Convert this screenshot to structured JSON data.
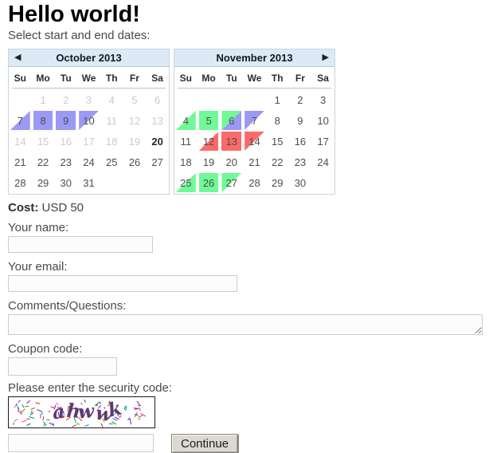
{
  "page": {
    "title": "Hello world!",
    "subtitle": "Select start and end dates:"
  },
  "legend_colors": {
    "purple": "#9a99f6",
    "green": "#6ffa97",
    "red": "#fc6a6a",
    "header_bg": "#dce9f6",
    "captcha_ink": "#5e3a70"
  },
  "calendars": [
    {
      "id": "october",
      "title": "October 2013",
      "nav_prev": "◀",
      "nav_next": "",
      "day_headers": [
        "Su",
        "Mo",
        "Tu",
        "We",
        "Th",
        "Fr",
        "Sa"
      ],
      "weeks": [
        [
          {
            "d": ""
          },
          {
            "d": "1",
            "muted": true
          },
          {
            "d": "2",
            "muted": true
          },
          {
            "d": "3",
            "muted": true
          },
          {
            "d": "4",
            "muted": true
          },
          {
            "d": "5",
            "muted": true
          },
          {
            "d": "6",
            "muted": true
          }
        ],
        [
          {
            "d": "7",
            "marks": [
              [
                "checkin",
                "purple"
              ]
            ]
          },
          {
            "d": "8",
            "marks": [
              [
                "full",
                "purple"
              ]
            ]
          },
          {
            "d": "9",
            "marks": [
              [
                "full",
                "purple"
              ]
            ]
          },
          {
            "d": "10",
            "marks": [
              [
                "checkout",
                "purple"
              ]
            ]
          },
          {
            "d": "11",
            "muted": true
          },
          {
            "d": "12",
            "muted": true
          },
          {
            "d": "13",
            "muted": true
          }
        ],
        [
          {
            "d": "14",
            "muted": true
          },
          {
            "d": "15",
            "muted": true
          },
          {
            "d": "16",
            "muted": true
          },
          {
            "d": "17",
            "muted": true
          },
          {
            "d": "18",
            "muted": true
          },
          {
            "d": "19",
            "muted": true
          },
          {
            "d": "20",
            "bold": true
          }
        ],
        [
          {
            "d": "21"
          },
          {
            "d": "22"
          },
          {
            "d": "23"
          },
          {
            "d": "24"
          },
          {
            "d": "25"
          },
          {
            "d": "26"
          },
          {
            "d": "27"
          }
        ],
        [
          {
            "d": "28"
          },
          {
            "d": "29"
          },
          {
            "d": "30"
          },
          {
            "d": "31"
          },
          {
            "d": ""
          },
          {
            "d": ""
          },
          {
            "d": ""
          }
        ]
      ]
    },
    {
      "id": "november",
      "title": "November 2013",
      "nav_prev": "",
      "nav_next": "▶",
      "day_headers": [
        "Su",
        "Mo",
        "Tu",
        "We",
        "Th",
        "Fr",
        "Sa"
      ],
      "weeks": [
        [
          {
            "d": ""
          },
          {
            "d": ""
          },
          {
            "d": ""
          },
          {
            "d": ""
          },
          {
            "d": "1"
          },
          {
            "d": "2"
          },
          {
            "d": "3"
          }
        ],
        [
          {
            "d": "4",
            "marks": [
              [
                "checkin",
                "green"
              ]
            ]
          },
          {
            "d": "5",
            "marks": [
              [
                "full",
                "green"
              ]
            ]
          },
          {
            "d": "6",
            "marks": [
              [
                "checkout",
                "green"
              ],
              [
                "checkin",
                "purple"
              ]
            ]
          },
          {
            "d": "7",
            "marks": [
              [
                "checkout",
                "purple"
              ]
            ]
          },
          {
            "d": "8"
          },
          {
            "d": "9"
          },
          {
            "d": "10"
          }
        ],
        [
          {
            "d": "11"
          },
          {
            "d": "12",
            "marks": [
              [
                "checkin",
                "red"
              ]
            ]
          },
          {
            "d": "13",
            "marks": [
              [
                "full",
                "red"
              ]
            ]
          },
          {
            "d": "14",
            "marks": [
              [
                "checkout",
                "red"
              ]
            ]
          },
          {
            "d": "15"
          },
          {
            "d": "16"
          },
          {
            "d": "17"
          }
        ],
        [
          {
            "d": "18"
          },
          {
            "d": "19"
          },
          {
            "d": "20"
          },
          {
            "d": "21"
          },
          {
            "d": "22"
          },
          {
            "d": "23"
          },
          {
            "d": "24"
          }
        ],
        [
          {
            "d": "25",
            "marks": [
              [
                "checkin",
                "green"
              ]
            ]
          },
          {
            "d": "26",
            "marks": [
              [
                "full",
                "green"
              ]
            ]
          },
          {
            "d": "27",
            "marks": [
              [
                "checkout",
                "green"
              ]
            ]
          },
          {
            "d": "28"
          },
          {
            "d": "29"
          },
          {
            "d": "30"
          },
          {
            "d": ""
          }
        ]
      ]
    }
  ],
  "cost": {
    "label": "Cost:",
    "value": "USD 50"
  },
  "form": {
    "name": {
      "label": "Your name:",
      "value": ""
    },
    "email": {
      "label": "Your email:",
      "value": ""
    },
    "comments": {
      "label": "Comments/Questions:",
      "value": ""
    },
    "coupon": {
      "label": "Coupon code:",
      "value": ""
    },
    "security": {
      "label": "Please enter the security code:",
      "value": ""
    },
    "captcha_text": "ahwwk",
    "continue_label": "Continue"
  }
}
